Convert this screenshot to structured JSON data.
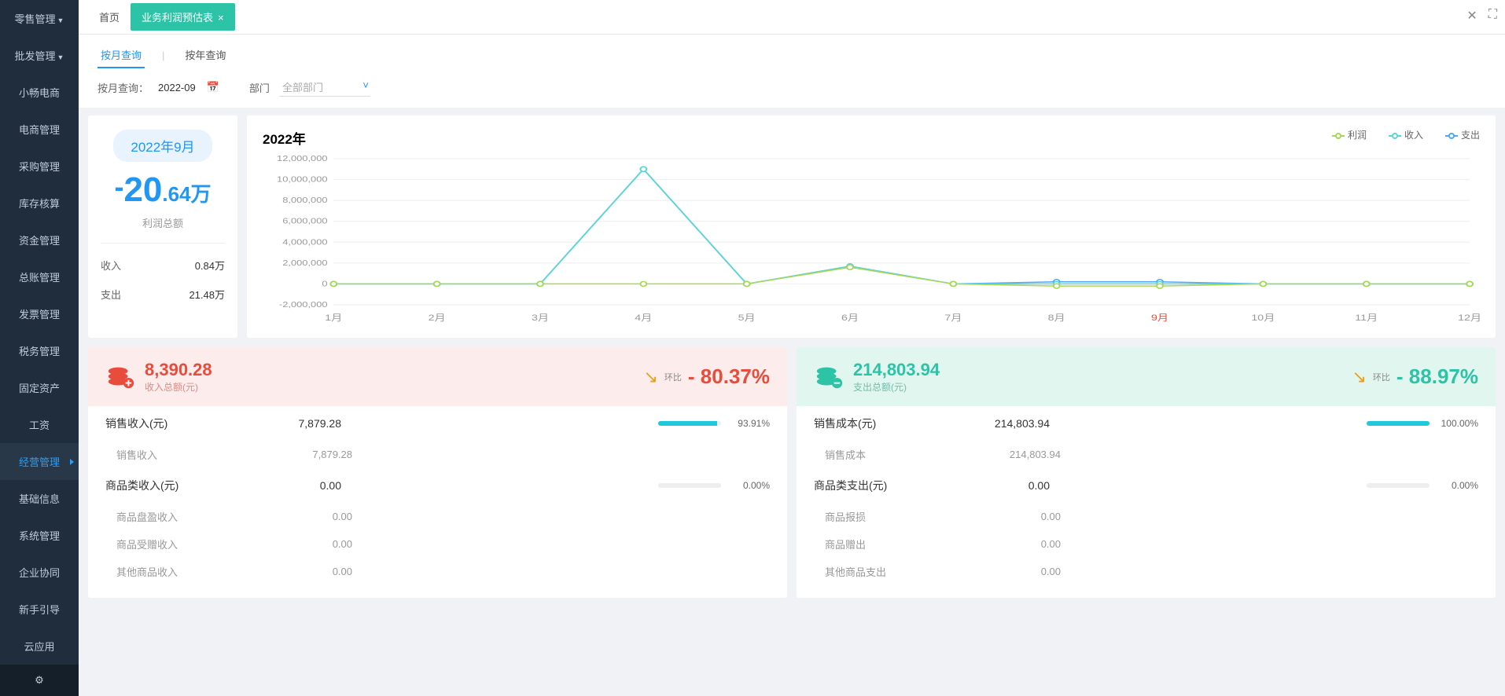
{
  "sidebar": {
    "items": [
      {
        "label": "零售管理",
        "caret": true
      },
      {
        "label": "批发管理",
        "caret": true
      },
      {
        "label": "小畅电商"
      },
      {
        "label": "电商管理"
      },
      {
        "label": "采购管理"
      },
      {
        "label": "库存核算"
      },
      {
        "label": "资金管理"
      },
      {
        "label": "总账管理"
      },
      {
        "label": "发票管理"
      },
      {
        "label": "税务管理"
      },
      {
        "label": "固定资产"
      },
      {
        "label": "工资"
      },
      {
        "label": "经营管理",
        "active": true
      },
      {
        "label": "基础信息"
      },
      {
        "label": "系统管理"
      },
      {
        "label": "企业协同"
      },
      {
        "label": "新手引导"
      },
      {
        "label": "云应用"
      }
    ]
  },
  "tabs": {
    "home": "首页",
    "active": "业务利润预估表"
  },
  "subtabs": {
    "by_month": "按月查询",
    "by_year": "按年查询"
  },
  "filter": {
    "month_label": "按月查询：",
    "month_value": "2022-09",
    "dept_label": "部门",
    "dept_value": "全部部门"
  },
  "summary": {
    "month_badge": "2022年9月",
    "profit_color": "#2196f3",
    "profit_sign": "-",
    "profit_int": "20",
    "profit_frac": ".64万",
    "profit_label": "利润总额",
    "income_label": "收入",
    "income_value": "0.84万",
    "expense_label": "支出",
    "expense_value": "21.48万"
  },
  "chart": {
    "title": "2022年",
    "legend": [
      {
        "label": "利润",
        "color": "#a6d854"
      },
      {
        "label": "收入",
        "color": "#5cd6d6"
      },
      {
        "label": "支出",
        "color": "#4aa8ff"
      }
    ],
    "y_ticks": [
      "12,000,000",
      "10,000,000",
      "8,000,000",
      "6,000,000",
      "4,000,000",
      "2,000,000",
      "0",
      "-2,000,000"
    ],
    "x_labels": [
      "1月",
      "2月",
      "3月",
      "4月",
      "5月",
      "6月",
      "7月",
      "8月",
      "9月",
      "10月",
      "11月",
      "12月"
    ],
    "highlight_x": "9月",
    "ylim": [
      -2000000,
      12000000
    ],
    "series": {
      "profit": [
        0,
        0,
        0,
        0,
        0,
        1600000,
        0,
        -200000,
        -200000,
        0,
        0,
        0
      ],
      "income": [
        0,
        0,
        0,
        11000000,
        0,
        1700000,
        0,
        0,
        0,
        0,
        0,
        0
      ],
      "expense": [
        0,
        0,
        0,
        11000000,
        0,
        1700000,
        0,
        200000,
        200000,
        0,
        0,
        0
      ]
    }
  },
  "income_panel": {
    "amount": "8,390.28",
    "subtitle": "收入总额(元)",
    "ratio_label": "环比",
    "ratio_value": "- 80.37%",
    "rows": [
      {
        "name": "销售收入(元)",
        "value": "7,879.28",
        "pct": 93.91,
        "pct_text": "93.91%"
      },
      {
        "name": "销售收入",
        "value": "7,879.28",
        "sub": true
      },
      {
        "name": "商品类收入(元)",
        "value": "0.00",
        "pct": 0,
        "pct_text": "0.00%"
      },
      {
        "name": "商品盘盈收入",
        "value": "0.00",
        "sub": true
      },
      {
        "name": "商品受赠收入",
        "value": "0.00",
        "sub": true
      },
      {
        "name": "其他商品收入",
        "value": "0.00",
        "sub": true
      }
    ]
  },
  "expense_panel": {
    "amount": "214,803.94",
    "subtitle": "支出总额(元)",
    "ratio_label": "环比",
    "ratio_value": "- 88.97%",
    "rows": [
      {
        "name": "销售成本(元)",
        "value": "214,803.94",
        "pct": 100,
        "pct_text": "100.00%"
      },
      {
        "name": "销售成本",
        "value": "214,803.94",
        "sub": true
      },
      {
        "name": "商品类支出(元)",
        "value": "0.00",
        "pct": 0,
        "pct_text": "0.00%"
      },
      {
        "name": "商品报损",
        "value": "0.00",
        "sub": true
      },
      {
        "name": "商品赠出",
        "value": "0.00",
        "sub": true
      },
      {
        "name": "其他商品支出",
        "value": "0.00",
        "sub": true
      }
    ]
  }
}
